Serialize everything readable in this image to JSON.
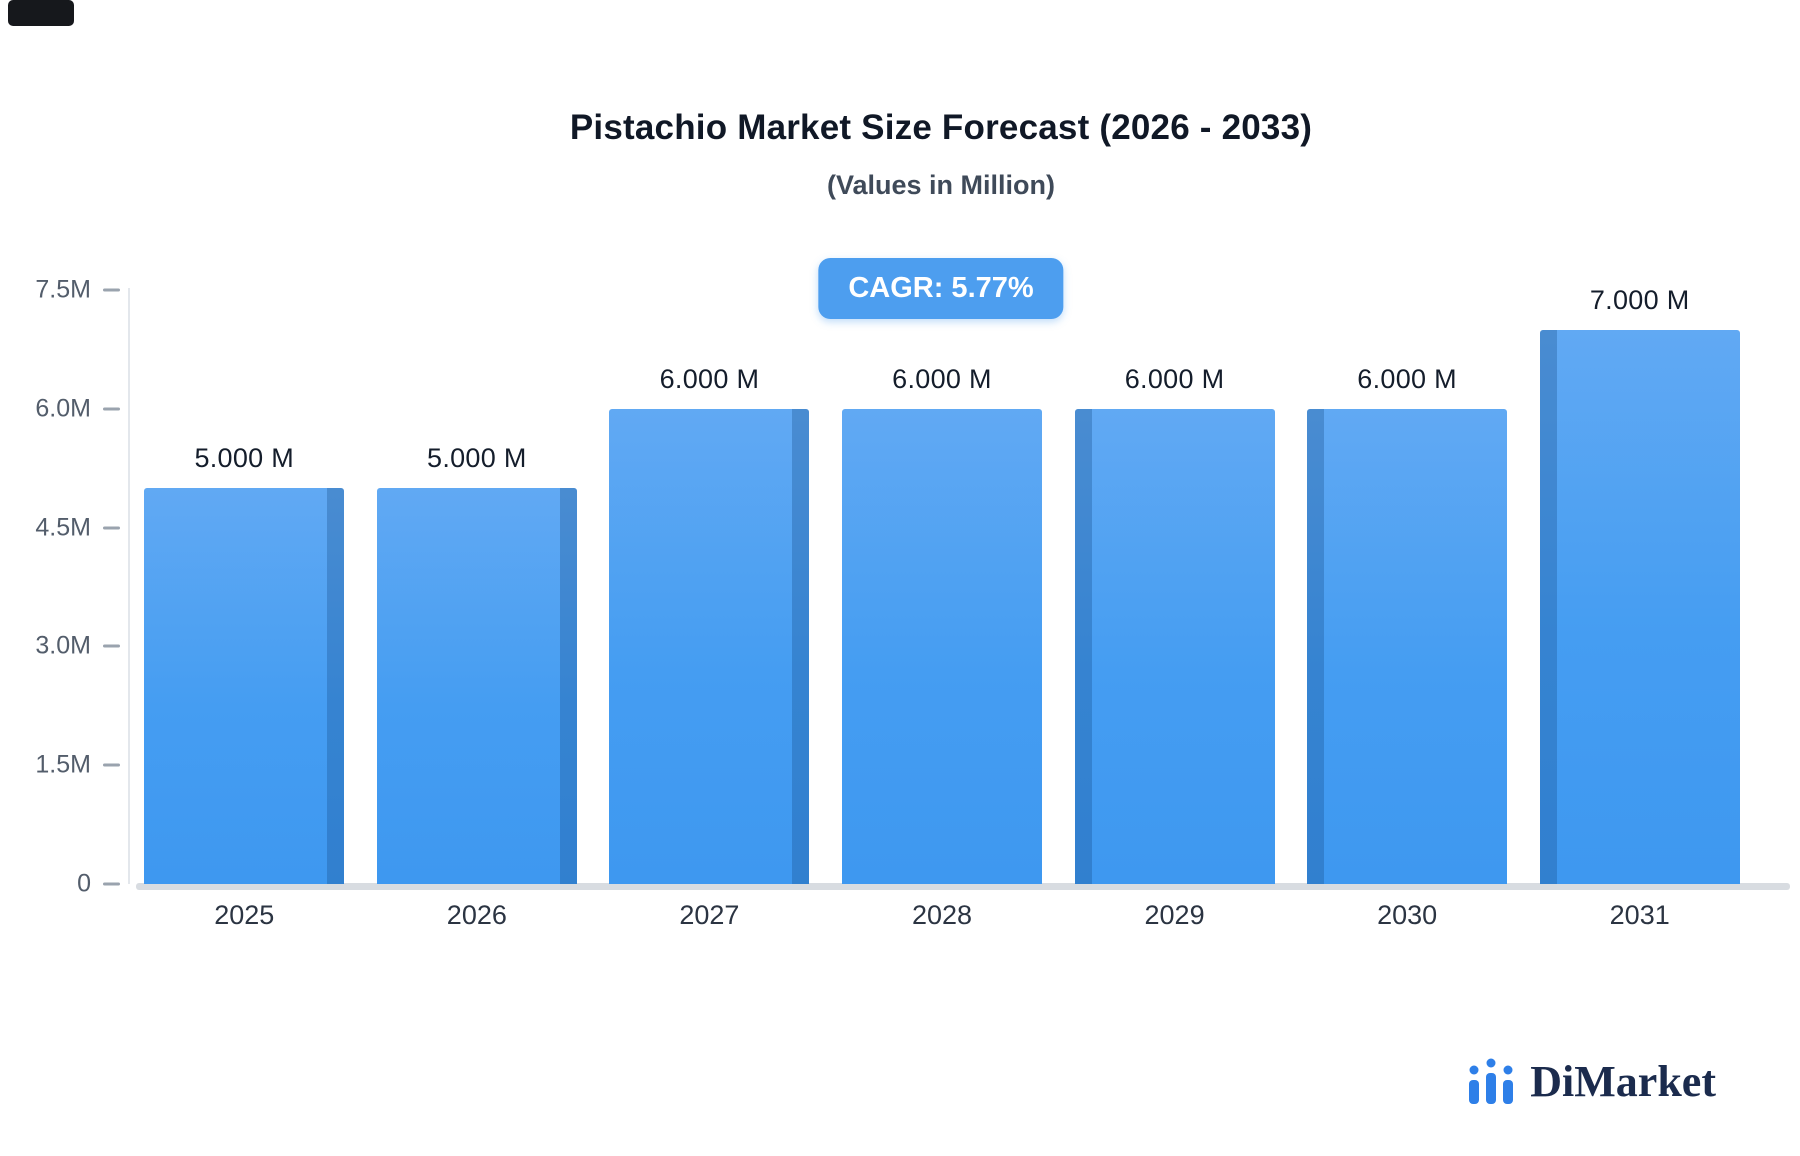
{
  "header": {
    "title": "Pistachio Market Size Forecast (2026 - 2033)",
    "subtitle": "(Values in Million)"
  },
  "badge": {
    "label": "CAGR: 5.77%",
    "bg_color": "#4D9EEF"
  },
  "chart_data": {
    "type": "bar",
    "title": "Pistachio Market Size Forecast (2026 - 2033)",
    "subtitle": "(Values in Million)",
    "categories": [
      "2025",
      "2026",
      "2027",
      "2028",
      "2029",
      "2030",
      "2031"
    ],
    "values": [
      5,
      5,
      6,
      6,
      6,
      6,
      7
    ],
    "value_labels": [
      "5.000 M",
      "5.000 M",
      "6.000 M",
      "6.000 M",
      "6.000 M",
      "6.000 M",
      "7.000 M"
    ],
    "unit": "Million",
    "ylim": [
      0,
      7.5
    ],
    "ytick_values": [
      0,
      1.5,
      3.0,
      4.5,
      6.0,
      7.5
    ],
    "ytick_labels": [
      "0",
      "1.5M",
      "3.0M",
      "4.5M",
      "6.0M",
      "7.5M"
    ],
    "grid": false,
    "legend": "none",
    "bar_color": "#459DF2",
    "bar_shade_color": "#2D7FD6"
  },
  "logo": {
    "text": "DiMarket",
    "icon": "bar-chart-icon",
    "accent": "#2E7FE8",
    "text_color": "#1B2B4D"
  }
}
